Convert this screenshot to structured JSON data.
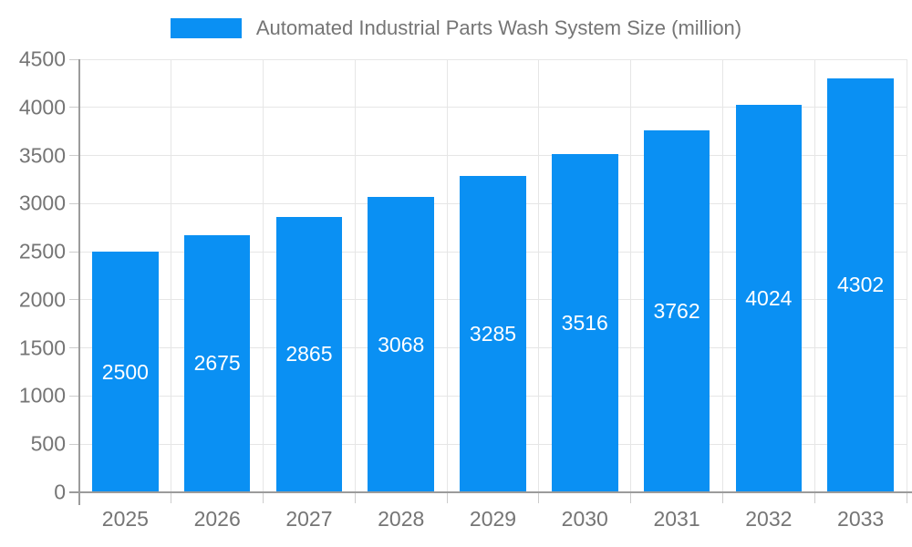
{
  "chart_data": {
    "type": "bar",
    "title": "Automated Industrial Parts Wash System Size (million)",
    "legend_position": "top",
    "categories": [
      "2025",
      "2026",
      "2027",
      "2028",
      "2029",
      "2030",
      "2031",
      "2032",
      "2033"
    ],
    "values": [
      2500,
      2675,
      2865,
      3068,
      3285,
      3516,
      3762,
      4024,
      4302
    ],
    "xlabel": "",
    "ylabel": "",
    "ylim": [
      0,
      4500
    ],
    "ytick_interval": 500,
    "grid": true,
    "bar_label_position": "inside-center",
    "colors": {
      "bar": "#0A90F3",
      "bar_label": "#FFFFFF",
      "grid_line": "#E6E6E6",
      "axis_line": "#9B9B9B",
      "tick_mark": "#CCCCCC",
      "text": "#757575",
      "background": "#FFFFFF"
    }
  }
}
